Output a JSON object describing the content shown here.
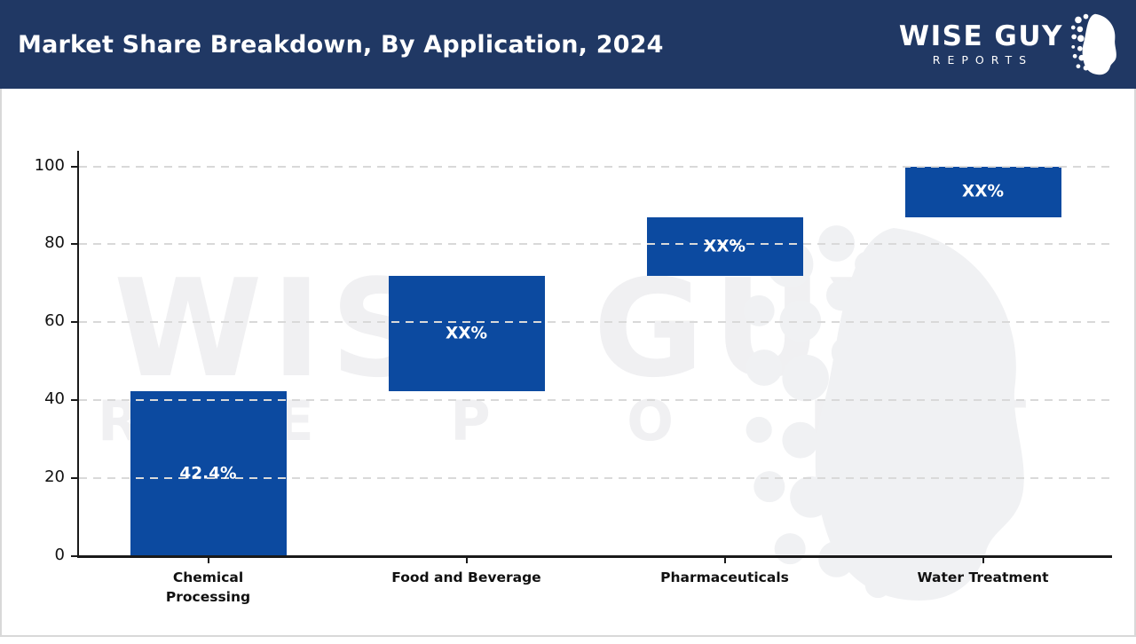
{
  "header": {
    "title": "Market Share Breakdown, By Application, 2024",
    "logo": {
      "brand_line1": "WISE GUY",
      "brand_line2": "REPORTS"
    },
    "bg_color": "#203864"
  },
  "watermark": {
    "line1": "WISE GUY",
    "line2": "R E P O R T S"
  },
  "chart_data": {
    "type": "bar",
    "variant": "floating-waterfall",
    "title": "Market Share Breakdown, By Application, 2024",
    "categories": [
      "Chemical Processing",
      "Food and Beverage",
      "Pharmaceuticals",
      "Water Treatment"
    ],
    "categories_display": [
      "Chemical\nProcessing",
      "Food and Beverage",
      "Pharmaceuticals",
      "Water Treatment"
    ],
    "bars": [
      {
        "category": "Chemical Processing",
        "start": 0,
        "end": 42.4,
        "value_label": "42.4%"
      },
      {
        "category": "Food and Beverage",
        "start": 42.4,
        "end": 72,
        "value_label": "XX%"
      },
      {
        "category": "Pharmaceuticals",
        "start": 72,
        "end": 87,
        "value_label": "XX%"
      },
      {
        "category": "Water Treatment",
        "start": 87,
        "end": 100,
        "value_label": "XX%"
      }
    ],
    "xlabel": "",
    "ylabel": "",
    "y_ticks": [
      0,
      20,
      40,
      60,
      80,
      100
    ],
    "ylim": [
      0,
      104
    ],
    "grid": "horizontal-dashed",
    "legend": "none",
    "bar_color": "#0c4aa0",
    "value_label_color": "#ffffff",
    "axis_color": "#1a1a1a",
    "gridline_color": "#d9d9d9"
  }
}
